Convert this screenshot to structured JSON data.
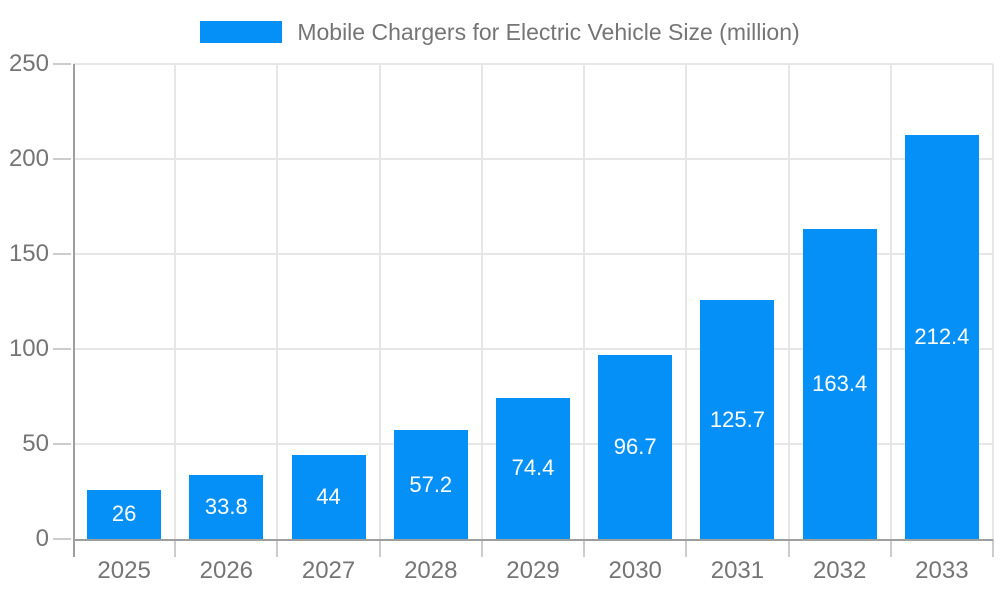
{
  "legend": {
    "label": "Mobile Chargers for Electric Vehicle Size (million)"
  },
  "colors": {
    "bar": "#0590F8",
    "axis_line": "#9e9e9e",
    "tick": "#cccccc",
    "grid": "#e6e6e6",
    "axis_text": "#757575",
    "bar_label_text": "#ffffff",
    "background": "#ffffff"
  },
  "chart_data": {
    "type": "bar",
    "title": "Mobile Chargers for Electric Vehicle Size (million)",
    "categories": [
      "2025",
      "2026",
      "2027",
      "2028",
      "2029",
      "2030",
      "2031",
      "2032",
      "2033"
    ],
    "values": [
      26,
      33.8,
      44,
      57.2,
      74.4,
      96.7,
      125.7,
      163.4,
      212.4
    ],
    "value_labels": [
      "26",
      "33.8",
      "44",
      "57.2",
      "74.4",
      "96.7",
      "125.7",
      "163.4",
      "212.4"
    ],
    "xlabel": "",
    "ylabel": "",
    "ylim": [
      0,
      250
    ],
    "yticks": [
      0,
      50,
      100,
      150,
      200,
      250
    ],
    "grid": true,
    "legend_position": "top",
    "value_label_position": "inside-center",
    "bar_color": "#0590F8"
  }
}
